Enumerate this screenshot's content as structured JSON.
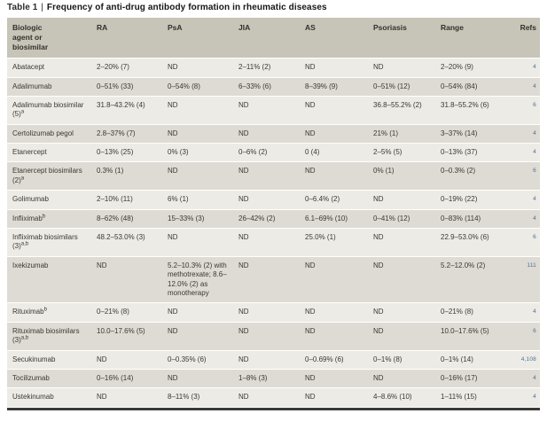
{
  "title": {
    "prefix": "Table 1",
    "separator": " | ",
    "text": "Frequency of anti-drug antibody formation in rheumatic diseases"
  },
  "colors": {
    "header_bg": "#c7c4b8",
    "row_light": "#ecebe6",
    "row_dark": "#dddbd3",
    "body_text": "#3a3831",
    "refs_link": "#51719b",
    "bottom_border": "#3a3a3a"
  },
  "table": {
    "columns": [
      "Biologic agent or biosimilar",
      "RA",
      "PsA",
      "JIA",
      "AS",
      "Psoriasis",
      "Range",
      "Refs"
    ],
    "rows": [
      {
        "agent": "Abatacept",
        "agent_sup": "",
        "ra": "2–20% (7)",
        "psa": "ND",
        "jia": "2–11% (2)",
        "as": "ND",
        "psoriasis": "ND",
        "range": "2–20% (9)",
        "refs": "4"
      },
      {
        "agent": "Adalimumab",
        "agent_sup": "",
        "ra": "0–51% (33)",
        "psa": "0–54% (8)",
        "jia": "6–33% (6)",
        "as": "8–39% (9)",
        "psoriasis": "0–51% (12)",
        "range": "0–54% (84)",
        "refs": "4"
      },
      {
        "agent": "Adalimumab biosimilar (5)",
        "agent_sup": "a",
        "ra": "31.8–43.2% (4)",
        "psa": "ND",
        "jia": "ND",
        "as": "ND",
        "psoriasis": "36.8–55.2% (2)",
        "range": "31.8–55.2% (6)",
        "refs": "6"
      },
      {
        "agent": "Certolizumab pegol",
        "agent_sup": "",
        "ra": "2.8–37% (7)",
        "psa": "ND",
        "jia": "ND",
        "as": "ND",
        "psoriasis": "21% (1)",
        "range": "3–37% (14)",
        "refs": "4"
      },
      {
        "agent": "Etanercept",
        "agent_sup": "",
        "ra": "0–13% (25)",
        "psa": "0% (3)",
        "jia": "0–6% (2)",
        "as": "0 (4)",
        "psoriasis": "2–5% (5)",
        "range": "0–13% (37)",
        "refs": "4"
      },
      {
        "agent": "Etanercept biosimilars (2)",
        "agent_sup": "a",
        "ra": "0.3% (1)",
        "psa": "ND",
        "jia": "ND",
        "as": "ND",
        "psoriasis": "0% (1)",
        "range": "0–0.3% (2)",
        "refs": "6"
      },
      {
        "agent": "Golimumab",
        "agent_sup": "",
        "ra": "2–10% (11)",
        "psa": "6% (1)",
        "jia": "ND",
        "as": "0–6.4% (2)",
        "psoriasis": "ND",
        "range": "0–19% (22)",
        "refs": "4"
      },
      {
        "agent": "Infliximab",
        "agent_sup": "b",
        "ra": "8–62% (48)",
        "psa": "15–33% (3)",
        "jia": "26–42% (2)",
        "as": "6.1–69% (10)",
        "psoriasis": "0–41% (12)",
        "range": "0–83% (114)",
        "refs": "4"
      },
      {
        "agent": "Infliximab biosimilars (3)",
        "agent_sup": "a,b",
        "ra": "48.2–53.0% (3)",
        "psa": "ND",
        "jia": "ND",
        "as": "25.0% (1)",
        "psoriasis": "ND",
        "range": "22.9–53.0% (6)",
        "refs": "6"
      },
      {
        "agent": "Ixekizumab",
        "agent_sup": "",
        "ra": "ND",
        "psa": "5.2–10.3% (2) with methotrexate; 8.6–12.0% (2) as monotherapy",
        "jia": "ND",
        "as": "ND",
        "psoriasis": "ND",
        "range": "5.2–12.0% (2)",
        "refs": "111"
      },
      {
        "agent": "Rituximab",
        "agent_sup": "b",
        "ra": "0–21% (8)",
        "psa": "ND",
        "jia": "ND",
        "as": "ND",
        "psoriasis": "ND",
        "range": "0–21% (8)",
        "refs": "4"
      },
      {
        "agent": "Rituximab biosimilars (3)",
        "agent_sup": "a,b",
        "ra": "10.0–17.6% (5)",
        "psa": "ND",
        "jia": "ND",
        "as": "ND",
        "psoriasis": "ND",
        "range": "10.0–17.6% (5)",
        "refs": "6"
      },
      {
        "agent": "Secukinumab",
        "agent_sup": "",
        "ra": "ND",
        "psa": "0–0.35% (6)",
        "jia": "ND",
        "as": "0–0.69% (6)",
        "psoriasis": "0–1% (8)",
        "range": "0–1% (14)",
        "refs": "4,108"
      },
      {
        "agent": "Tocilizumab",
        "agent_sup": "",
        "ra": "0–16% (14)",
        "psa": "ND",
        "jia": "1–8% (3)",
        "as": "ND",
        "psoriasis": "ND",
        "range": "0–16% (17)",
        "refs": "4"
      },
      {
        "agent": "Ustekinumab",
        "agent_sup": "",
        "ra": "ND",
        "psa": "8–11% (3)",
        "jia": "ND",
        "as": "ND",
        "psoriasis": "4–8.6% (10)",
        "range": "1–11% (15)",
        "refs": "4"
      }
    ]
  }
}
